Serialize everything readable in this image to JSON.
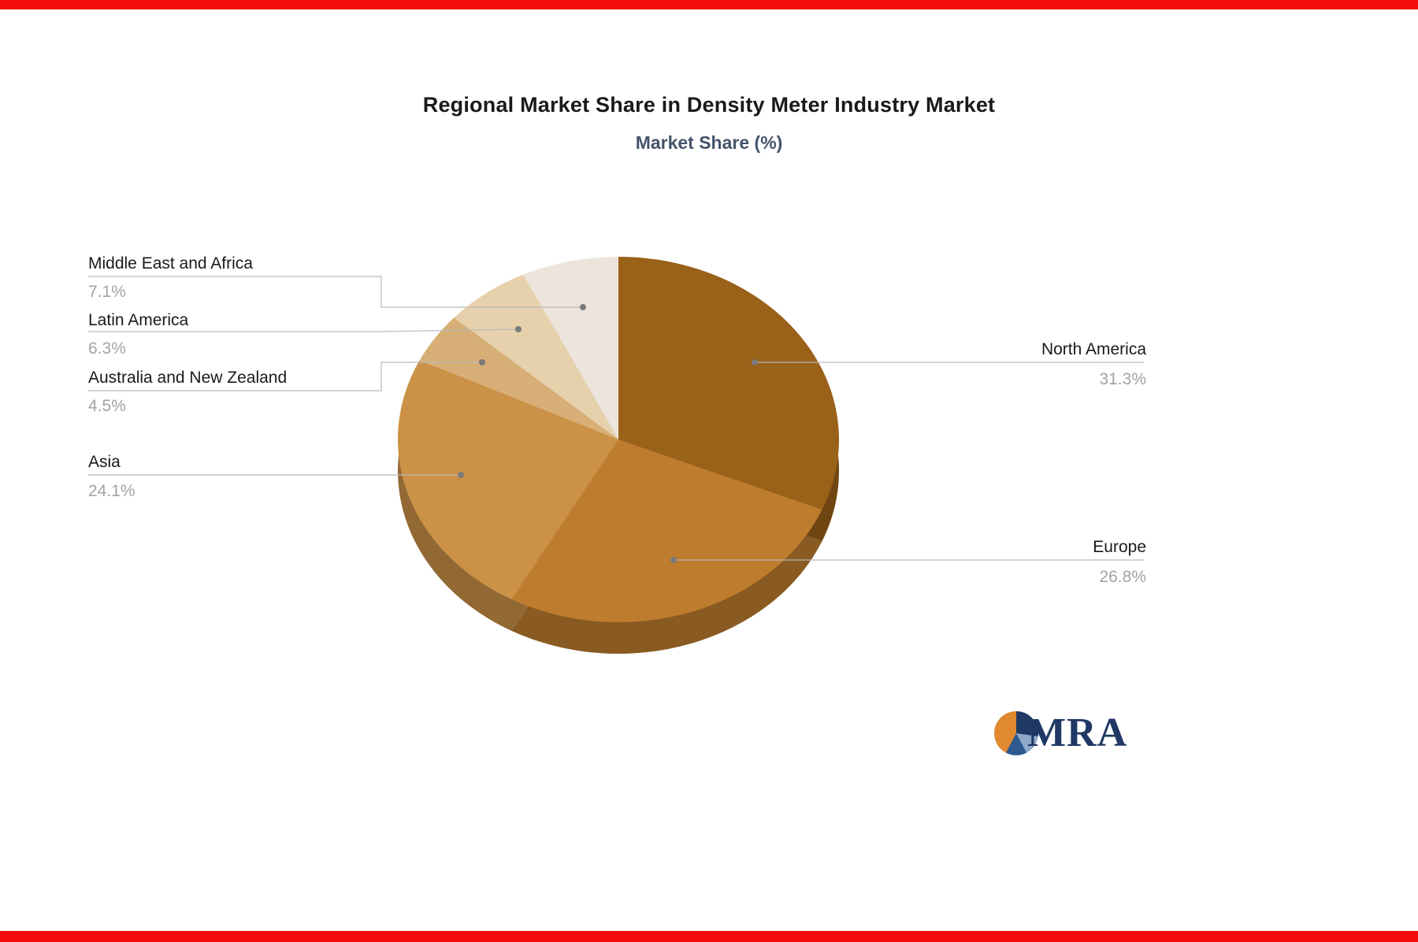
{
  "page": {
    "top_bar_color": "#f40b0b",
    "bottom_bar_color": "#f40b0b",
    "background": "#ffffff"
  },
  "header": {
    "title": "Regional Market Share in Density Meter Industry Market",
    "subtitle": "Market Share (%)",
    "subtitle_color": "#44546A"
  },
  "chart_data": {
    "type": "pie",
    "title": "Regional Market Share in Density Meter Industry Market",
    "subtitle": "Market Share (%)",
    "unit": "%",
    "three_d": true,
    "direction": "clockwise",
    "start_angle_deg": 0,
    "legend_position": "callout-labels",
    "slices": [
      {
        "label": "North America",
        "value": 31.3,
        "color": "#9a6119",
        "label_side": "right"
      },
      {
        "label": "Europe",
        "value": 26.8,
        "color": "#be7d2e",
        "label_side": "right"
      },
      {
        "label": "Asia",
        "value": 24.1,
        "color": "#cb9147",
        "label_side": "left"
      },
      {
        "label": "Australia and New Zealand",
        "value": 4.5,
        "color": "#d7af76",
        "label_side": "left"
      },
      {
        "label": "Latin America",
        "value": 6.3,
        "color": "#e6d1ac",
        "label_side": "left"
      },
      {
        "label": "Middle East and Africa",
        "value": 7.1,
        "color": "#ede5db",
        "label_side": "left"
      }
    ],
    "value_format": "{value}%"
  },
  "logo": {
    "text": "MRA",
    "navy": "#1f3864",
    "mid_blue": "#2e5a8f",
    "light_blue": "#8fa8c8",
    "orange": "#e0892e"
  }
}
